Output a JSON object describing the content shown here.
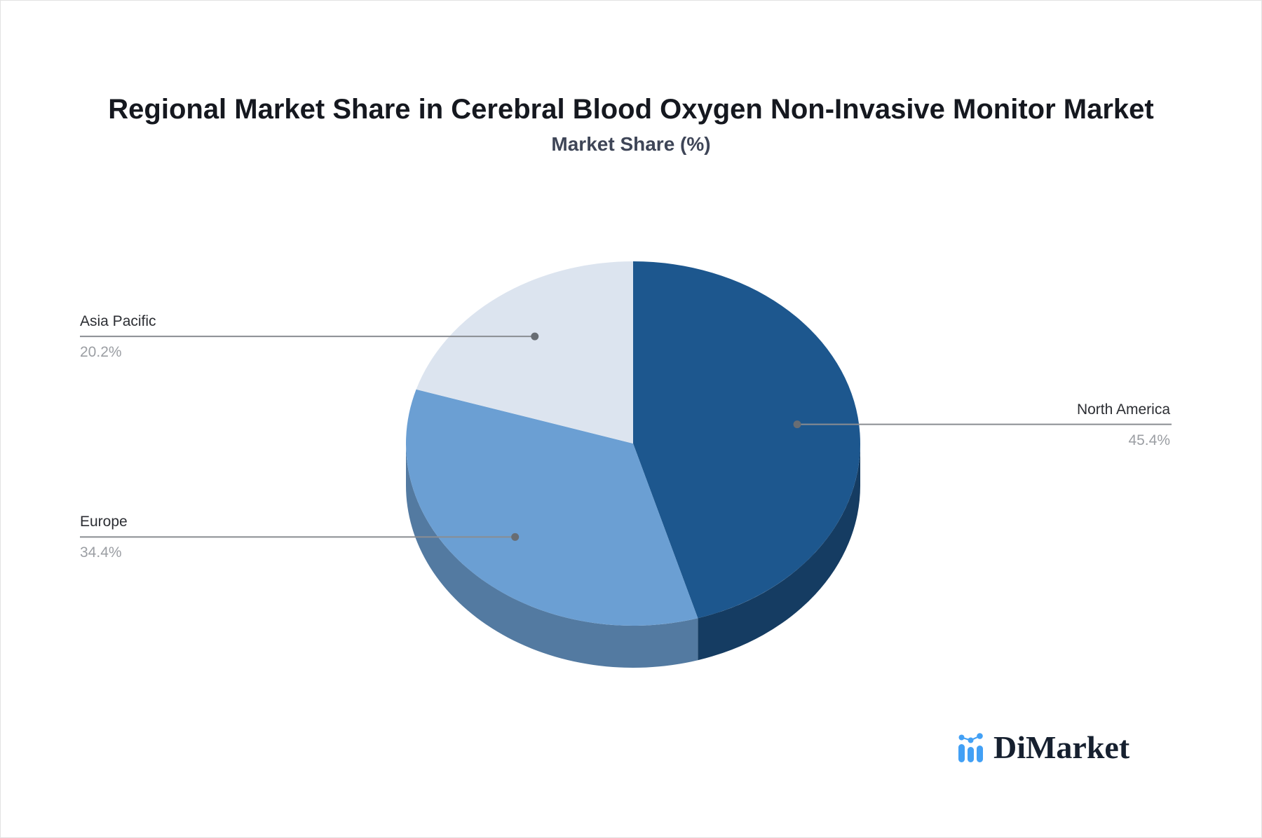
{
  "chart_data": {
    "type": "pie",
    "style": "3d",
    "title": "Regional Market Share in Cerebral Blood Oxygen Non-Invasive Monitor Market",
    "subtitle": "Market Share (%)",
    "unit": "%",
    "start_angle": "12-o'clock",
    "direction": "clockwise",
    "slices": [
      {
        "name": "North America",
        "value": 45.4,
        "label": "45.4%",
        "color": "#1d578e",
        "side_color": "#153c62",
        "label_side": "right"
      },
      {
        "name": "Europe",
        "value": 34.4,
        "label": "34.4%",
        "color": "#6b9fd3",
        "side_color": "#537aa1",
        "label_side": "left"
      },
      {
        "name": "Asia Pacific",
        "value": 20.2,
        "label": "20.2%",
        "color": "#dce4ef",
        "side_color": "#b8c5d9",
        "label_side": "left"
      }
    ],
    "callout": {
      "line_color": "#8a8d92",
      "dot_color": "#686d73",
      "name_color": "#2c2e33",
      "value_color": "#9b9ea3"
    },
    "legend": "none",
    "grid": "off"
  },
  "brand": {
    "name": "DiMarket",
    "icon": "bar-chart-trend-icon",
    "icon_color": "#42a0f5",
    "text_color": "#16202f"
  }
}
